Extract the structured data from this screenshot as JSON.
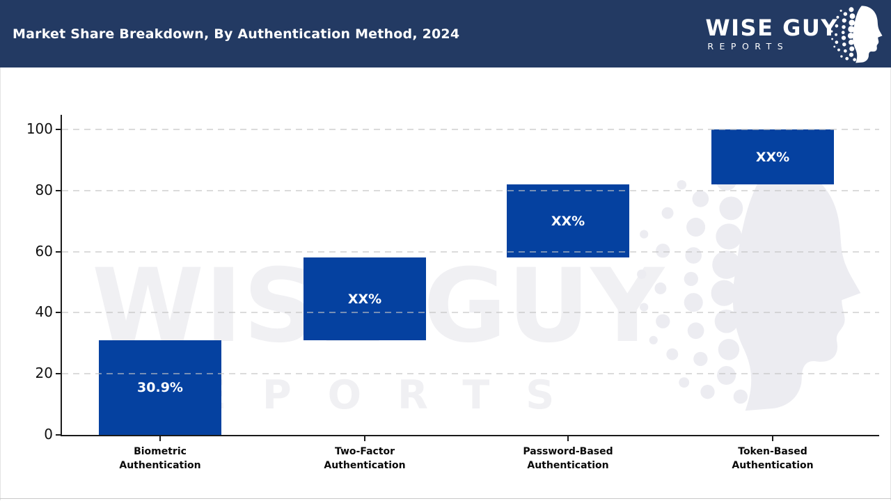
{
  "header": {
    "title": "Market Share Breakdown, By Authentication Method, 2024",
    "logo": {
      "line1": "WISE GUY",
      "line2": "REPORTS"
    }
  },
  "watermark": {
    "line1": "WISE GUY",
    "line2": "REPORTS"
  },
  "colors": {
    "header_bg": "#233a63",
    "bar": "#0541a0",
    "axis": "#1a1a1a",
    "grid": "#c3c3c3",
    "watermark": "#f0f0f3",
    "value_label": "#ffffff",
    "title_text": "#ffffff",
    "hairline": "#c9c9c9"
  },
  "chart_data": {
    "type": "bar",
    "subtype": "waterfall-floating-segments",
    "title": "Market Share Breakdown, By Authentication Method, 2024",
    "categories": [
      "Biometric Authentication",
      "Two-Factor Authentication",
      "Password-Based Authentication",
      "Token-Based Authentication"
    ],
    "bars": [
      {
        "label_lines": [
          "Biometric",
          "Authentication"
        ],
        "start": 0,
        "end": 30.9,
        "value": 30.9,
        "value_label": "30.9%"
      },
      {
        "label_lines": [
          "Two-Factor",
          "Authentication"
        ],
        "start": 30.9,
        "end": 58,
        "value": 27.1,
        "value_label": "XX%"
      },
      {
        "label_lines": [
          "Password-Based",
          "Authentication"
        ],
        "start": 58,
        "end": 82,
        "value": 24,
        "value_label": "XX%"
      },
      {
        "label_lines": [
          "Token-Based",
          "Authentication"
        ],
        "start": 82,
        "end": 100,
        "value": 18,
        "value_label": "XX%"
      }
    ],
    "xlabel": "",
    "ylabel": "",
    "ylim": [
      0,
      100
    ],
    "yticks": [
      0,
      20,
      40,
      60,
      80,
      100
    ],
    "grid": "horizontal-dashed",
    "legend": "none",
    "bar_color": "#0541a0"
  }
}
